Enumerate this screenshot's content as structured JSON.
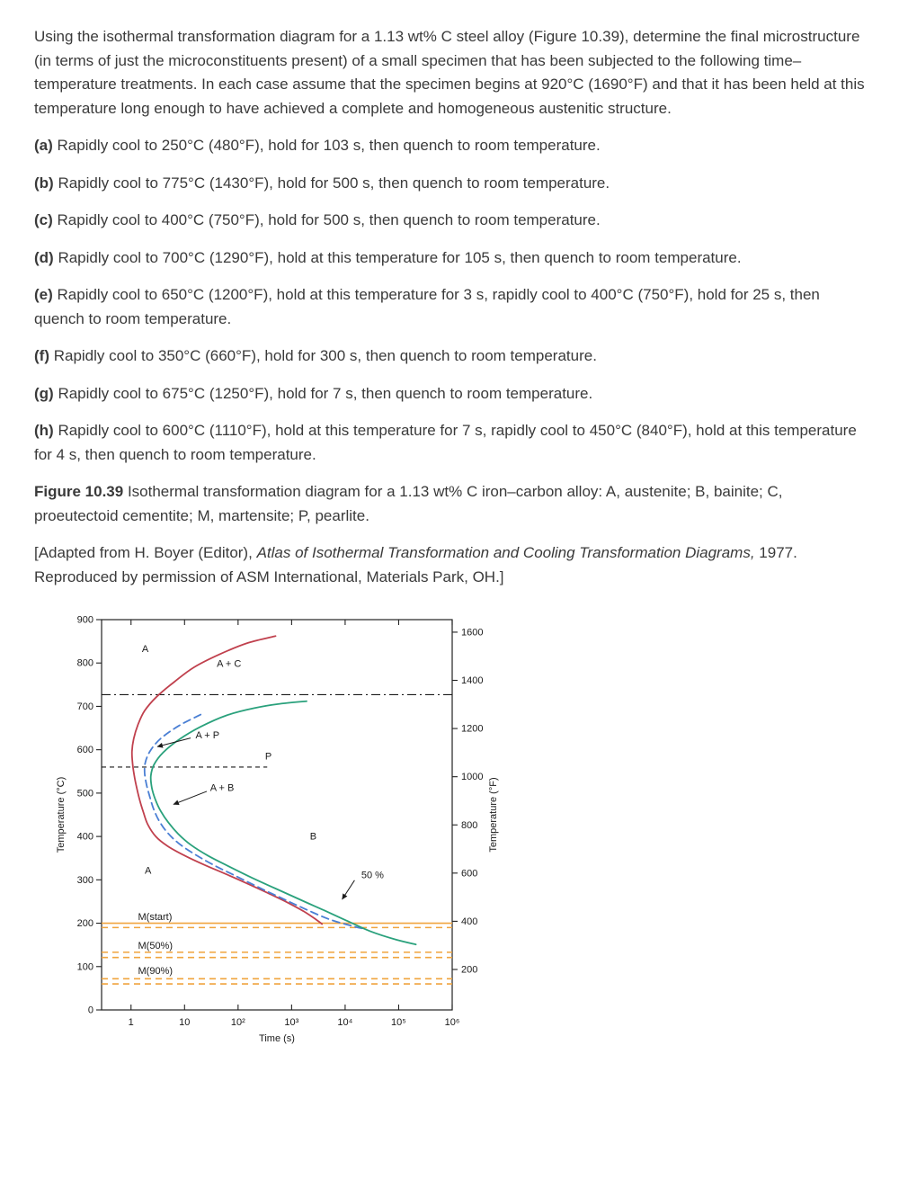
{
  "problem": {
    "intro": "Using the isothermal transformation diagram for a 1.13 wt% C steel alloy (Figure 10.39), determine the final microstructure (in terms of just the microconstituents present) of a small specimen that has been subjected to the following time–temperature treatments. In each case assume that the specimen begins at 920°C (1690°F) and that it has been held at this temperature long enough to have achieved a complete and homogeneous austenitic structure.",
    "items": [
      {
        "label": "(a)",
        "text": "Rapidly cool to 250°C (480°F), hold for 103 s, then quench to room temperature."
      },
      {
        "label": "(b)",
        "text": "Rapidly cool to 775°C (1430°F), hold for 500 s, then quench to room temperature."
      },
      {
        "label": "(c)",
        "text": "Rapidly cool to 400°C (750°F), hold for 500 s, then quench to room temperature."
      },
      {
        "label": "(d)",
        "text": "Rapidly cool to 700°C (1290°F), hold at this temperature for 105 s, then quench to room temperature."
      },
      {
        "label": "(e)",
        "text": "Rapidly cool to 650°C (1200°F), hold at this temperature for 3 s, rapidly cool to 400°C (750°F), hold for 25 s, then quench to room temperature."
      },
      {
        "label": "(f)",
        "text": "Rapidly cool to 350°C (660°F), hold for 300 s, then quench to room temperature."
      },
      {
        "label": "(g)",
        "text": "Rapidly cool to 675°C (1250°F), hold for 7 s, then quench to room temperature."
      },
      {
        "label": "(h)",
        "text": "Rapidly cool to 600°C (1110°F), hold at this temperature for 7 s, rapidly cool to 450°C (840°F), hold at this temperature for 4 s, then quench to room temperature."
      }
    ]
  },
  "figure_caption": {
    "label": "Figure 10.39",
    "text": "Isothermal transformation diagram for a 1.13 wt% C iron–carbon alloy: A, austenite; B, bainite; C, proeutectoid cementite; M, martensite; P, pearlite."
  },
  "credit": {
    "prefix": "[Adapted from H. Boyer (Editor),",
    "italic": "Atlas of Isothermal Transformation and Cooling Transformation Diagrams,",
    "suffix": "1977. Reproduced by permission of ASM International, Materials Park, OH.]"
  },
  "chart_data": {
    "type": "line",
    "x_scale": "log",
    "xlabel": "Time (s)",
    "ylabel_left": "Temperature (°C)",
    "ylabel_right": "Temperature (°F)",
    "xlim_log10": [
      -0.55,
      6
    ],
    "ylim_c": [
      0,
      900
    ],
    "x_ticks": [
      {
        "t": 1,
        "label": "1"
      },
      {
        "t": 10,
        "label": "10"
      },
      {
        "t": 100,
        "label": "10²"
      },
      {
        "t": 1000,
        "label": "10³"
      },
      {
        "t": 10000,
        "label": "10⁴"
      },
      {
        "t": 100000,
        "label": "10⁵"
      },
      {
        "t": 1000000,
        "label": "10⁶"
      }
    ],
    "y_ticks_c": [
      0,
      100,
      200,
      300,
      400,
      500,
      600,
      700,
      800,
      900
    ],
    "y_ticks_f": [
      200,
      400,
      600,
      800,
      1000,
      1200,
      1400,
      1600
    ],
    "eutectoid_temp_c": 727,
    "pearlite_boundary": {
      "temp_c": 560,
      "t_end": 350,
      "style": "dashed"
    },
    "colors": {
      "start": "#c0404d",
      "fifty": "#4a7fd4",
      "finish": "#2aa17c",
      "martensite": "#f0a43e",
      "boundary": "#1a1a1a"
    },
    "series": [
      {
        "name": "transformation start",
        "color": "start",
        "style": "solid",
        "points": [
          [
            500,
            862
          ],
          [
            150,
            846
          ],
          [
            45,
            820
          ],
          [
            15,
            790
          ],
          [
            6.5,
            757
          ],
          [
            3,
            722
          ],
          [
            1.8,
            690
          ],
          [
            1.35,
            658
          ],
          [
            1.12,
            625
          ],
          [
            1.04,
            596
          ],
          [
            1.07,
            568
          ],
          [
            1.15,
            540
          ],
          [
            1.28,
            512
          ],
          [
            1.45,
            484
          ],
          [
            1.7,
            456
          ],
          [
            2.05,
            428
          ],
          [
            2.9,
            400
          ],
          [
            4.8,
            378
          ],
          [
            10,
            356
          ],
          [
            24,
            334
          ],
          [
            60,
            313
          ],
          [
            145,
            292
          ],
          [
            340,
            271
          ],
          [
            800,
            249
          ],
          [
            1700,
            227
          ],
          [
            2900,
            208
          ],
          [
            3700,
            198
          ]
        ]
      },
      {
        "name": "50% transformation",
        "color": "fifty",
        "style": "dashed",
        "points": [
          [
            20,
            681
          ],
          [
            8,
            656
          ],
          [
            3.6,
            626
          ],
          [
            2.3,
            598
          ],
          [
            1.85,
            571
          ],
          [
            1.8,
            546
          ],
          [
            1.95,
            519
          ],
          [
            2.25,
            491
          ],
          [
            2.65,
            463
          ],
          [
            3.35,
            436
          ],
          [
            4.7,
            410
          ],
          [
            7.6,
            385
          ],
          [
            15,
            360
          ],
          [
            35,
            334
          ],
          [
            90,
            309
          ],
          [
            230,
            284
          ],
          [
            620,
            259
          ],
          [
            1700,
            234
          ],
          [
            4800,
            210
          ],
          [
            13000,
            194
          ],
          [
            21000,
            188
          ]
        ]
      },
      {
        "name": "transformation finish",
        "color": "finish",
        "style": "solid",
        "points": [
          [
            1900,
            712
          ],
          [
            600,
            706
          ],
          [
            200,
            696
          ],
          [
            60,
            679
          ],
          [
            20,
            653
          ],
          [
            8,
            624
          ],
          [
            4,
            594
          ],
          [
            2.7,
            566
          ],
          [
            2.35,
            540
          ],
          [
            2.45,
            512
          ],
          [
            2.85,
            485
          ],
          [
            3.6,
            458
          ],
          [
            5,
            432
          ],
          [
            7.6,
            406
          ],
          [
            13,
            381
          ],
          [
            28,
            355
          ],
          [
            70,
            330
          ],
          [
            180,
            305
          ],
          [
            500,
            280
          ],
          [
            1400,
            255
          ],
          [
            4000,
            230
          ],
          [
            11000,
            205
          ],
          [
            30000,
            181
          ],
          [
            90000,
            162
          ],
          [
            210000,
            151
          ]
        ]
      }
    ],
    "martensite_lines": [
      {
        "label": "M(start)",
        "temp_c": 200,
        "style": "solid"
      },
      {
        "label": "",
        "temp_c": 190,
        "style": "dashed"
      },
      {
        "label": "M(50%)",
        "temp_c": 133,
        "style": "dashed"
      },
      {
        "label": "",
        "temp_c": 121,
        "style": "dashed"
      },
      {
        "label": "M(90%)",
        "temp_c": 72,
        "style": "dashed"
      },
      {
        "label": "",
        "temp_c": 60,
        "style": "dashed"
      }
    ],
    "annotations": [
      {
        "text": "A",
        "t": 1.6,
        "temp_c": 833
      },
      {
        "text": "A + C",
        "t": 40,
        "temp_c": 798
      },
      {
        "text": "A + P",
        "t": 16,
        "temp_c": 634
      },
      {
        "text": "P",
        "t": 320,
        "temp_c": 585
      },
      {
        "text": "A + B",
        "t": 30,
        "temp_c": 512
      },
      {
        "text": "B",
        "t": 2200,
        "temp_c": 400
      },
      {
        "text": "A",
        "t": 1.8,
        "temp_c": 321
      },
      {
        "text": "50 %",
        "t": 20000,
        "temp_c": 311
      },
      {
        "text": "M(start)",
        "t": 1.35,
        "temp_c": 215
      },
      {
        "text": "M(50%)",
        "t": 1.35,
        "temp_c": 148
      },
      {
        "text": "M(90%)",
        "t": 1.35,
        "temp_c": 90
      }
    ],
    "arrows": [
      {
        "from_t": 13,
        "from_c": 627,
        "to_t": 3.1,
        "to_c": 607
      },
      {
        "from_t": 26,
        "from_c": 504,
        "to_t": 6.2,
        "to_c": 474
      },
      {
        "from_t": 15000,
        "from_c": 299,
        "to_t": 8800,
        "to_c": 255
      }
    ]
  }
}
